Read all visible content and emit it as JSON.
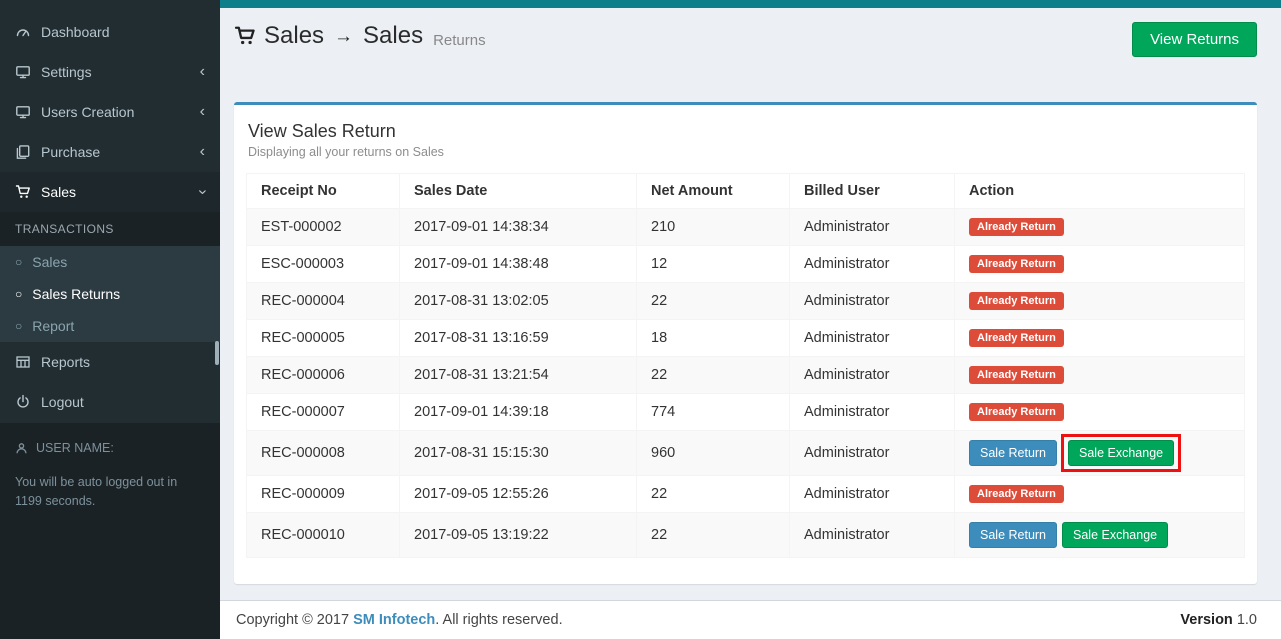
{
  "sidebar": {
    "items": {
      "dashboard": "Dashboard",
      "settings": "Settings",
      "users_creation": "Users Creation",
      "purchase": "Purchase",
      "sales": "Sales"
    },
    "section_header": "TRANSACTIONS",
    "sub_items": {
      "sales": "Sales",
      "sales_returns": "Sales Returns",
      "report": "Report"
    },
    "reports": "Reports",
    "logout": "Logout",
    "user_label": "USER NAME:",
    "auto_logout_notice": "You will be auto logged out in 1199 seconds."
  },
  "header": {
    "breadcrumb_primary": "Sales",
    "arrow": "→",
    "breadcrumb_secondary": "Sales",
    "breadcrumb_sub": "Returns",
    "view_returns_button": "View Returns"
  },
  "card": {
    "title": "View Sales Return",
    "subtitle": "Displaying all your returns on Sales"
  },
  "table": {
    "columns": [
      "Receipt No",
      "Sales Date",
      "Net Amount",
      "Billed User",
      "Action"
    ],
    "action_defs": {
      "already_return": {
        "label": "Already Return",
        "style": "danger"
      },
      "sale_return": {
        "label": "Sale Return",
        "style": "primary"
      },
      "sale_exchange": {
        "label": "Sale Exchange",
        "style": "success"
      }
    },
    "rows": [
      {
        "receipt_no": "EST-000002",
        "sales_date": "2017-09-01 14:38:34",
        "net_amount": "210",
        "billed_user": "Administrator",
        "actions": [
          {
            "type": "already_return"
          }
        ]
      },
      {
        "receipt_no": "ESC-000003",
        "sales_date": "2017-09-01 14:38:48",
        "net_amount": "12",
        "billed_user": "Administrator",
        "actions": [
          {
            "type": "already_return"
          }
        ]
      },
      {
        "receipt_no": "REC-000004",
        "sales_date": "2017-08-31 13:02:05",
        "net_amount": "22",
        "billed_user": "Administrator",
        "actions": [
          {
            "type": "already_return"
          }
        ]
      },
      {
        "receipt_no": "REC-000005",
        "sales_date": "2017-08-31 13:16:59",
        "net_amount": "18",
        "billed_user": "Administrator",
        "actions": [
          {
            "type": "already_return"
          }
        ]
      },
      {
        "receipt_no": "REC-000006",
        "sales_date": "2017-08-31 13:21:54",
        "net_amount": "22",
        "billed_user": "Administrator",
        "actions": [
          {
            "type": "already_return"
          }
        ]
      },
      {
        "receipt_no": "REC-000007",
        "sales_date": "2017-09-01 14:39:18",
        "net_amount": "774",
        "billed_user": "Administrator",
        "actions": [
          {
            "type": "already_return"
          }
        ]
      },
      {
        "receipt_no": "REC-000008",
        "sales_date": "2017-08-31 15:15:30",
        "net_amount": "960",
        "billed_user": "Administrator",
        "actions": [
          {
            "type": "sale_return"
          },
          {
            "type": "sale_exchange",
            "highlighted": true
          }
        ]
      },
      {
        "receipt_no": "REC-000009",
        "sales_date": "2017-09-05 12:55:26",
        "net_amount": "22",
        "billed_user": "Administrator",
        "actions": [
          {
            "type": "already_return"
          }
        ]
      },
      {
        "receipt_no": "REC-000010",
        "sales_date": "2017-09-05 13:19:22",
        "net_amount": "22",
        "billed_user": "Administrator",
        "actions": [
          {
            "type": "sale_return"
          },
          {
            "type": "sale_exchange"
          }
        ]
      }
    ]
  },
  "footer": {
    "copyright_prefix": "Copyright © 2017",
    "brand": "SM Infotech",
    "copyright_suffix": ". All rights reserved.",
    "version_label": "Version",
    "version_value": "1.0"
  },
  "colors": {
    "accent": "#3c8dbc",
    "success": "#00a65a",
    "danger": "#dd4b39",
    "primary_border": "#367fa9",
    "success_border": "#008d4c",
    "sidebar_bg": "#222d32",
    "sidebar_active_bg": "#1e282c",
    "submenu_bg": "#2c3b41",
    "section_header_bg": "#1a2226",
    "content_bg": "#ecf0f5",
    "top_strip": "#0f7e8b",
    "highlight": "#ee1111"
  }
}
